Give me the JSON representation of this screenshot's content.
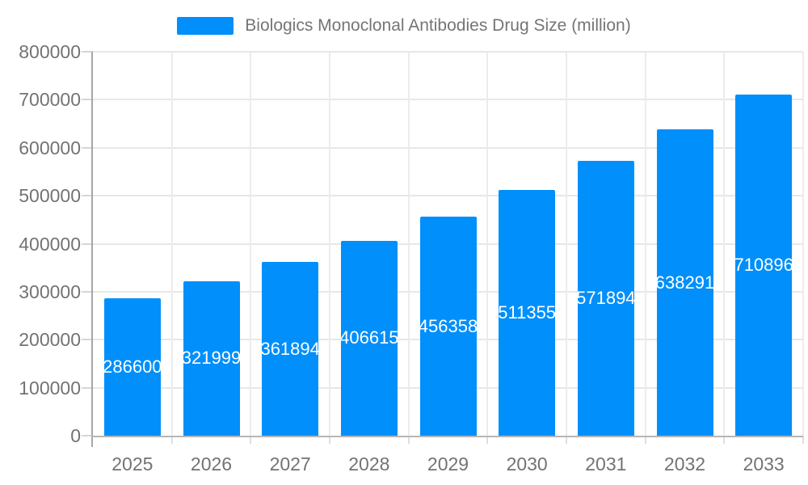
{
  "chart_data": {
    "type": "bar",
    "legend": "Biologics Monoclonal Antibodies Drug Size (million)",
    "categories": [
      "2025",
      "2026",
      "2027",
      "2028",
      "2029",
      "2030",
      "2031",
      "2032",
      "2033"
    ],
    "values": [
      286600,
      321999,
      361894,
      406615,
      456358,
      511355,
      571894,
      638291,
      710896
    ],
    "value_labels": [
      "286600",
      "321999",
      "361894",
      "406615",
      "456358",
      "511355",
      "571894",
      "638291",
      "710896"
    ],
    "ylim": [
      0,
      800000
    ],
    "ytick_step": 100000,
    "ytick_labels": [
      "0",
      "100000",
      "200000",
      "300000",
      "400000",
      "500000",
      "600000",
      "700000",
      "800000"
    ],
    "xlabel": "",
    "ylabel": "",
    "grid": true,
    "legend_position": "top",
    "bar_color": "#008FFB",
    "bar_label_color": "#ffffff",
    "axis_text_color": "#737373",
    "gridline_color": "#e7e7e7"
  }
}
